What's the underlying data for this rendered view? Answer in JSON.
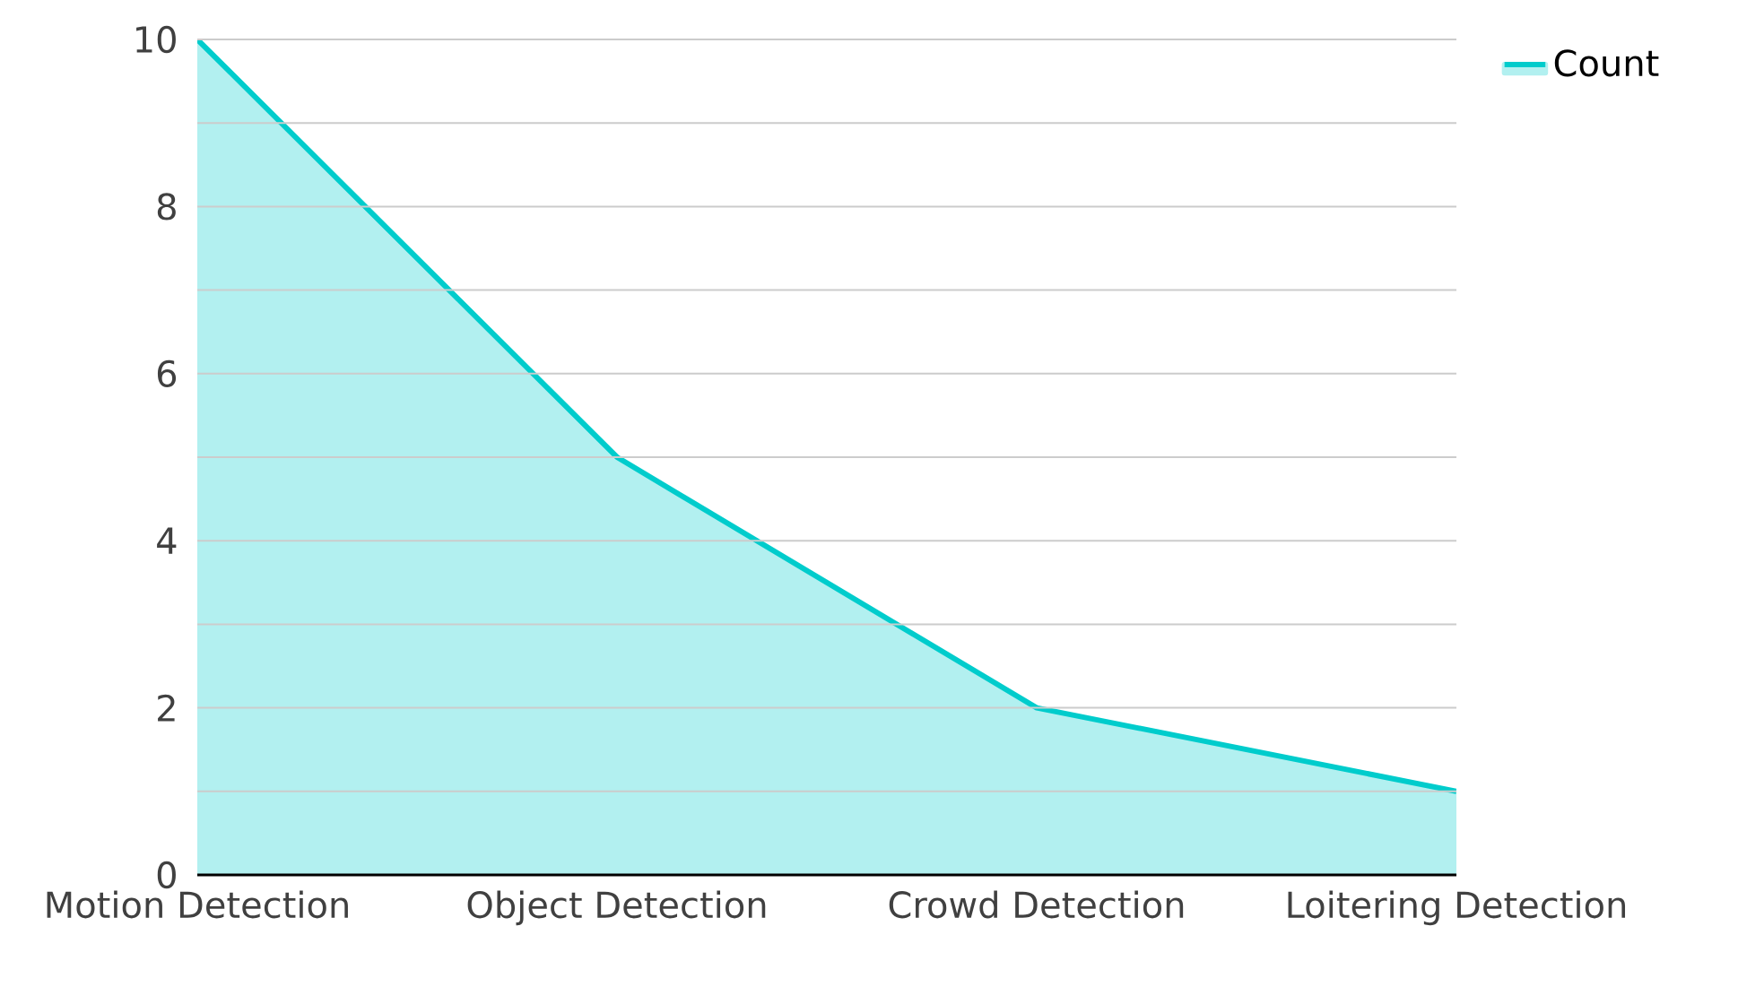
{
  "chart_data": {
    "type": "area",
    "categories": [
      "Motion Detection",
      "Object Detection",
      "Crowd Detection",
      "Loitering Detection"
    ],
    "series": [
      {
        "name": "Count",
        "color": "#00cccc",
        "values": [
          10,
          5,
          2,
          1
        ]
      }
    ],
    "ylim": [
      0,
      10
    ],
    "yticks": [
      0,
      {
        "value": 1,
        "label": null
      },
      2,
      {
        "value": 3,
        "label": null
      },
      4,
      {
        "value": 5,
        "label": null
      },
      6,
      {
        "value": 7,
        "label": null
      },
      8,
      {
        "value": 9,
        "label": null
      },
      10
    ],
    "grid": "y",
    "legend": "top right"
  }
}
